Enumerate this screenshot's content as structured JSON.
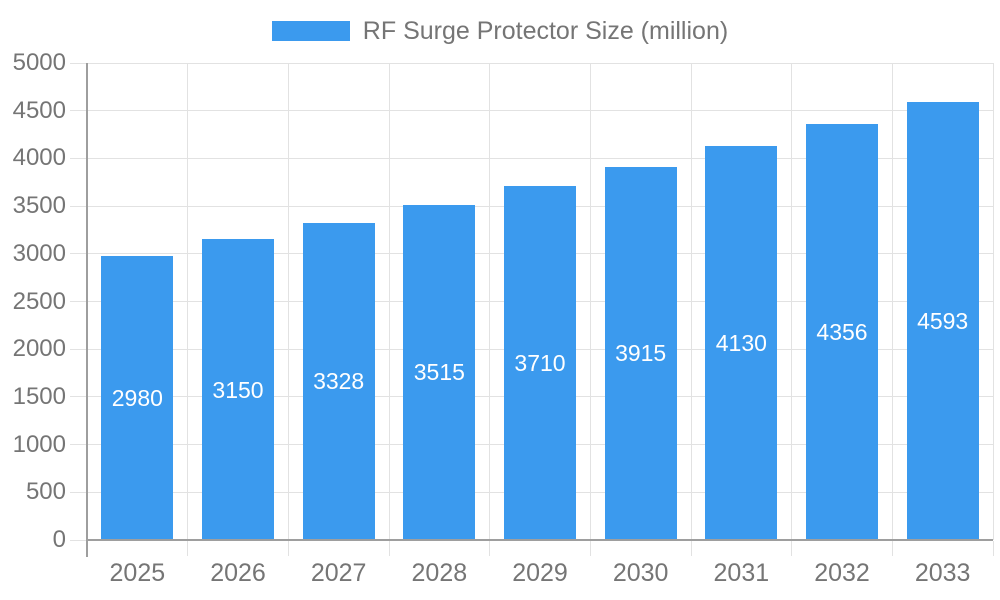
{
  "legend": {
    "label": "RF Surge Protector Size (million)"
  },
  "colors": {
    "bar": "#3B9AEE",
    "grid": "#E2E2E2",
    "axis": "#9E9E9E",
    "text": "#757575",
    "bar_label": "#FFFFFF",
    "background": "#FFFFFF"
  },
  "chart_data": {
    "type": "bar",
    "title": "RF Surge Protector Size (million)",
    "series_name": "RF Surge Protector Size (million)",
    "categories": [
      "2025",
      "2026",
      "2027",
      "2028",
      "2029",
      "2030",
      "2031",
      "2032",
      "2033"
    ],
    "values": [
      2980,
      3150,
      3328,
      3515,
      3710,
      3915,
      4130,
      4356,
      4593
    ],
    "xlabel": "",
    "ylabel": "",
    "ylim": [
      0,
      5000
    ],
    "ytick_interval": 500,
    "grid": true,
    "legend_position": "top-center",
    "data_labels": "inside-middle-white"
  }
}
